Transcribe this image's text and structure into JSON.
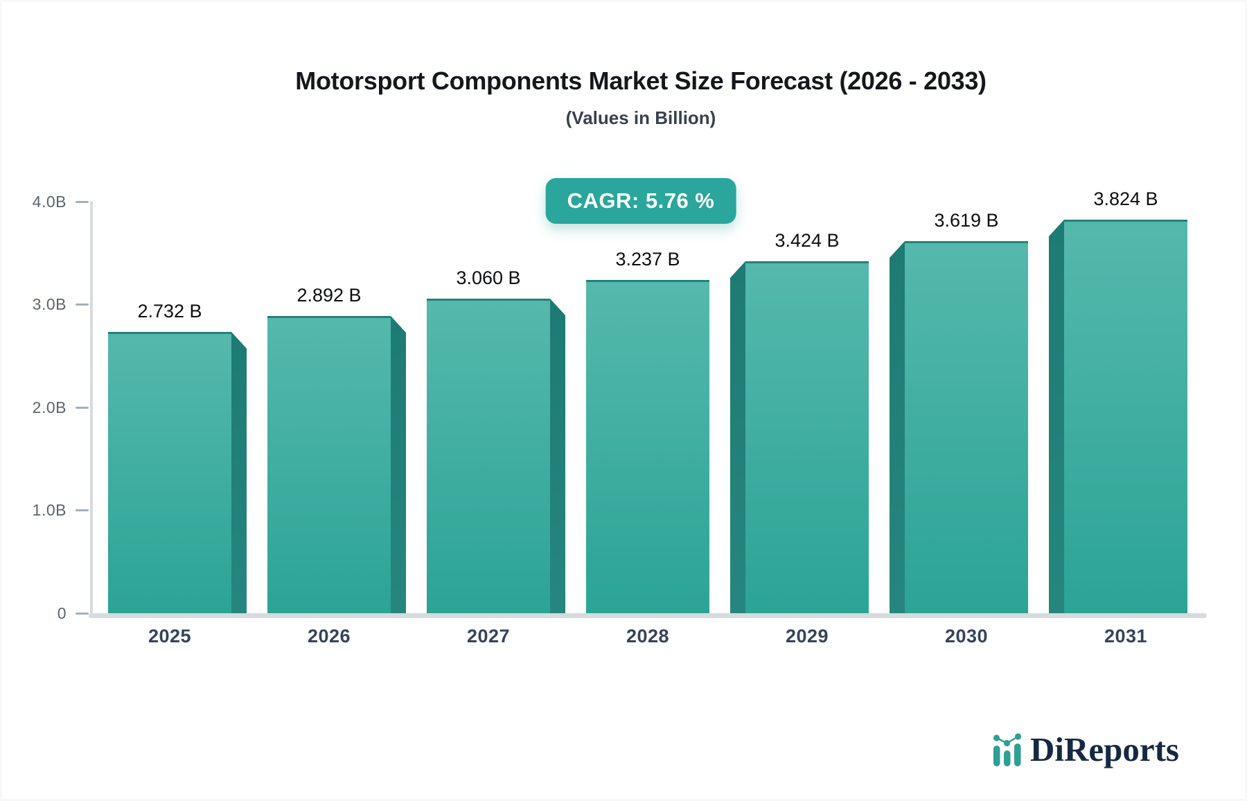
{
  "header": {
    "title": "Motorsport Components Market Size Forecast (2026 - 2033)",
    "subtitle": "(Values in Billion)"
  },
  "badge": {
    "label": "CAGR: 5.76 %"
  },
  "chart_data": {
    "type": "bar",
    "title": "Motorsport Components Market Size Forecast (2026 - 2033)",
    "subtitle": "(Values in Billion)",
    "annotation": "CAGR: 5.76 %",
    "categories": [
      "2025",
      "2026",
      "2027",
      "2028",
      "2029",
      "2030",
      "2031"
    ],
    "values": [
      2.732,
      2.892,
      3.06,
      3.237,
      3.424,
      3.619,
      3.824
    ],
    "bar_labels": [
      "2.732 B",
      "2.892 B",
      "3.060 B",
      "3.237 B",
      "3.424 B",
      "3.619 B",
      "3.824 B"
    ],
    "unit": "Billion",
    "xlabel": "",
    "ylabel": "",
    "ylim": [
      0,
      4
    ],
    "yticks": [
      {
        "label": "4.0B",
        "value": 4
      },
      {
        "label": "3.0B",
        "value": 3
      },
      {
        "label": "2.0B",
        "value": 2
      },
      {
        "label": "1.0B",
        "value": 1
      },
      {
        "label": "0",
        "value": 0
      }
    ],
    "grid": false,
    "legend": false
  },
  "logo": {
    "text": "DiReports",
    "icon": "bar-line-chart-icon"
  },
  "colors": {
    "bar_top": "#55b8ad",
    "bar_bottom": "#2ba495",
    "bar_top_edge": "#228279",
    "bar_side": "#1e7a74",
    "bar_side_light": "#26867e",
    "badge_bg": "#2aa69c",
    "badge_text": "#ffffff",
    "axis": "#d7dbde",
    "title_text": "#14171c",
    "subtitle_text": "#39414e",
    "ytick_text": "#5a6570",
    "xtick_text": "#34445b",
    "value_text": "#0c0e10",
    "logo_text": "#152a42",
    "logo_icon": "#2f9e95"
  }
}
